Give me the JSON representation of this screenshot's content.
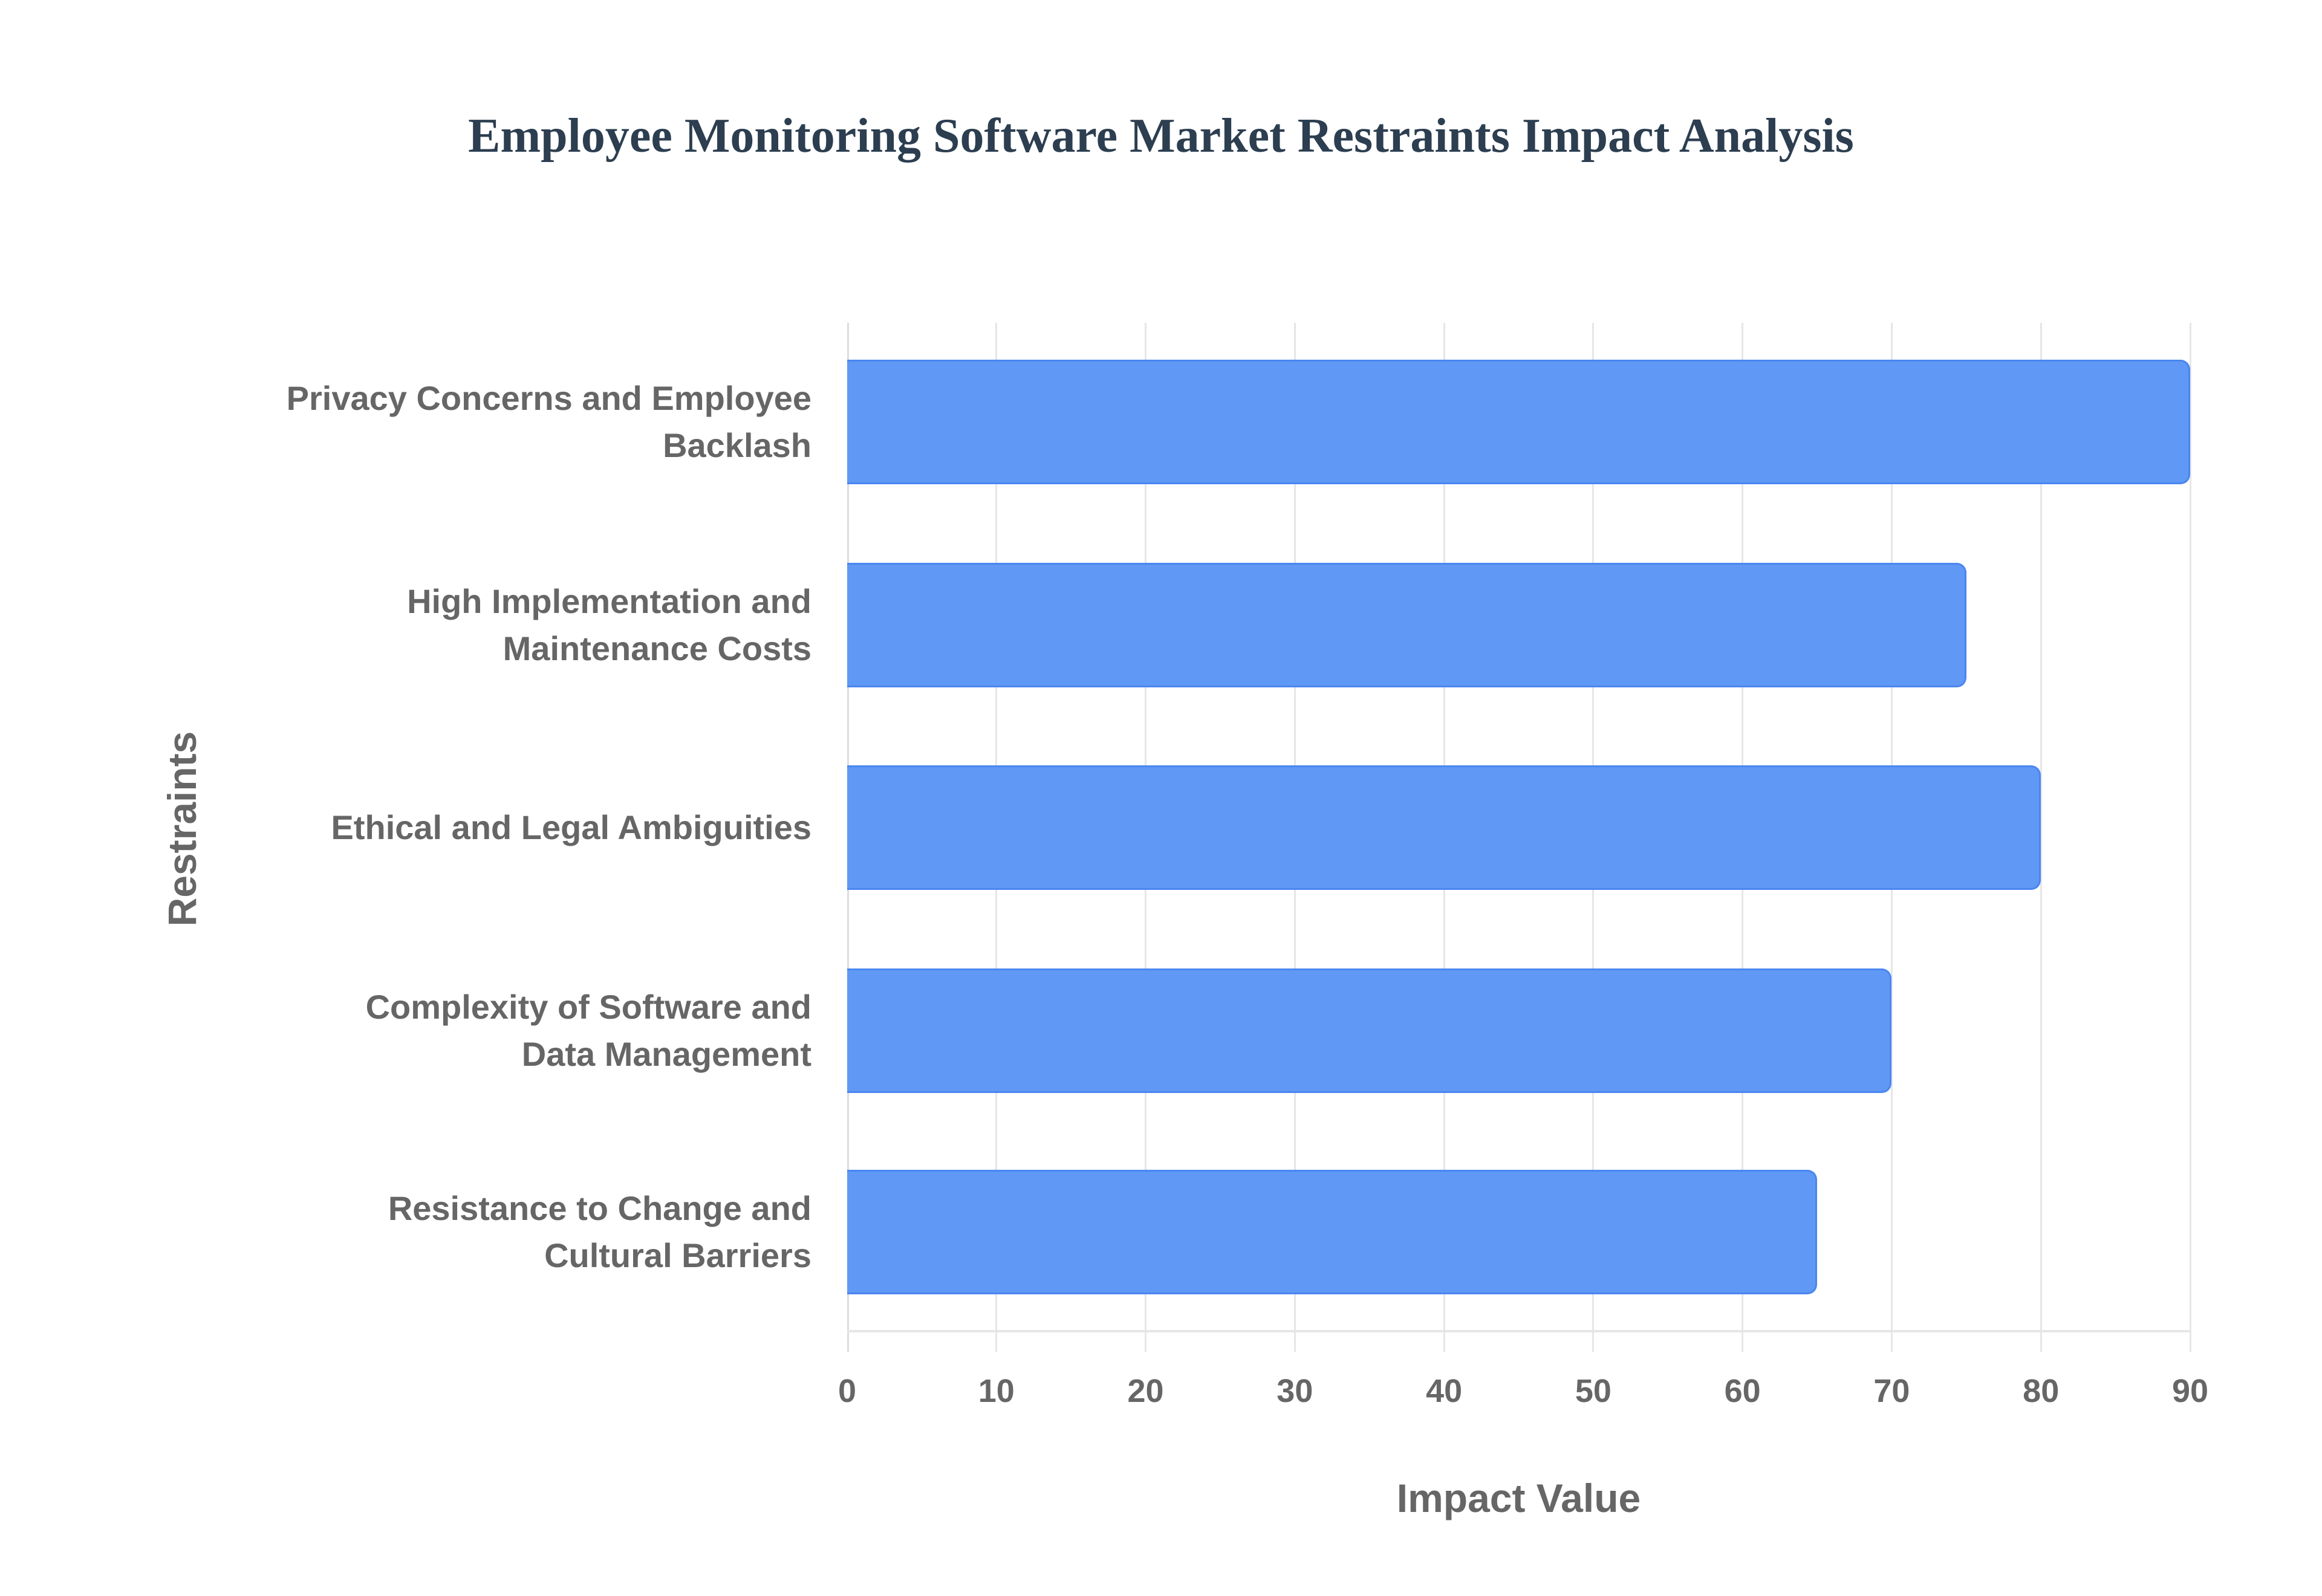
{
  "title": "Employee Monitoring Software Market Restraints Impact Analysis",
  "axes": {
    "xlabel": "Impact Value",
    "ylabel": "Restraints",
    "xticks": [
      "0",
      "10",
      "20",
      "30",
      "40",
      "50",
      "60",
      "70",
      "80",
      "90"
    ]
  },
  "colors": {
    "bar_fill": "#6098f5",
    "bar_border": "#4a86f0",
    "title": "#2c3e50",
    "label": "#666666",
    "grid": "#e6e6e6"
  },
  "bars": [
    {
      "label_line1": "Privacy Concerns and Employee",
      "label_line2": "Backlash",
      "value": 90
    },
    {
      "label_line1": "High Implementation and",
      "label_line2": "Maintenance Costs",
      "value": 75
    },
    {
      "label_line1": "Ethical and Legal Ambiguities",
      "label_line2": "",
      "value": 80
    },
    {
      "label_line1": "Complexity of Software and",
      "label_line2": "Data Management",
      "value": 70
    },
    {
      "label_line1": "Resistance to Change and",
      "label_line2": "Cultural Barriers",
      "value": 65
    }
  ],
  "chart_data": {
    "type": "bar",
    "orientation": "horizontal",
    "title": "Employee Monitoring Software Market Restraints Impact Analysis",
    "categories": [
      "Privacy Concerns and Employee Backlash",
      "High Implementation and Maintenance Costs",
      "Ethical and Legal Ambiguities",
      "Complexity of Software and Data Management",
      "Resistance to Change and Cultural Barriers"
    ],
    "values": [
      90,
      75,
      80,
      70,
      65
    ],
    "xlabel": "Impact Value",
    "ylabel": "Restraints",
    "xlim": [
      0,
      90
    ],
    "xticks": [
      0,
      10,
      20,
      30,
      40,
      50,
      60,
      70,
      80,
      90
    ],
    "grid": true,
    "legend": null
  }
}
